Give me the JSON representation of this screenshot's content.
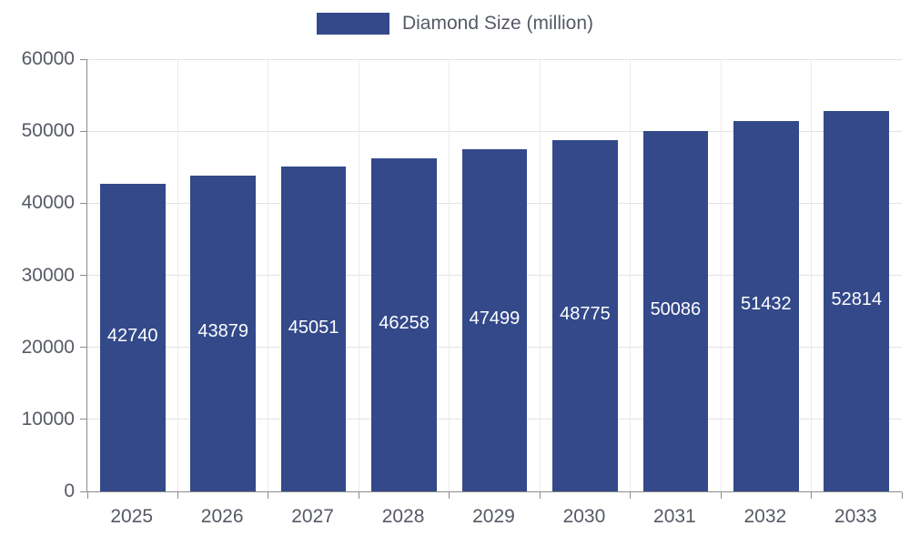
{
  "chart_data": {
    "type": "bar",
    "title": "Diamond Size (million)",
    "categories": [
      "2025",
      "2026",
      "2027",
      "2028",
      "2029",
      "2030",
      "2031",
      "2032",
      "2033"
    ],
    "values": [
      42740,
      43879,
      45051,
      46258,
      47499,
      48775,
      50086,
      51432,
      52814
    ],
    "xlabel": "",
    "ylabel": "",
    "ylim": [
      0,
      60000
    ],
    "yticks": [
      0,
      10000,
      20000,
      30000,
      40000,
      50000,
      60000
    ],
    "grid": true,
    "legend_position": "top-center",
    "bar_color": "#33498A",
    "label_color": "#ffffff",
    "axis_text_color": "#555a64"
  }
}
